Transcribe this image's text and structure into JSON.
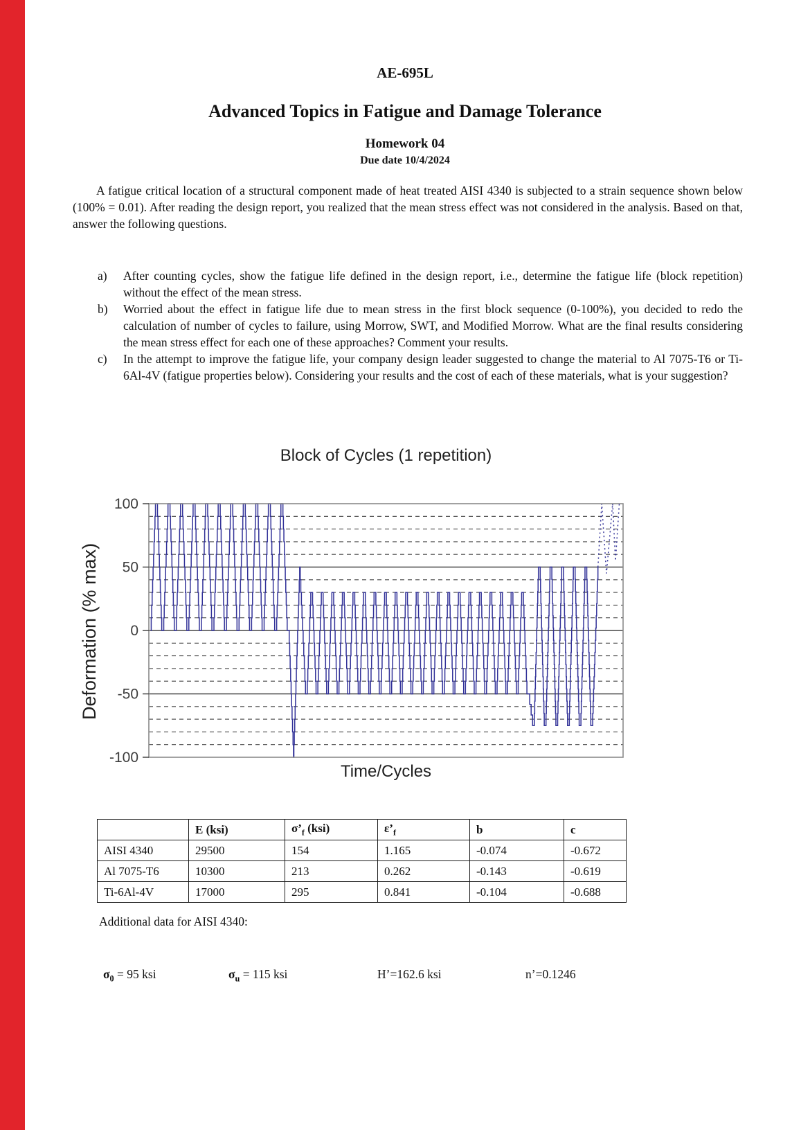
{
  "header": {
    "course_code": "AE-695L",
    "course_title": "Advanced Topics in Fatigue and Damage Tolerance",
    "homework": "Homework 04",
    "due_date": "Due date 10/4/2024"
  },
  "intro": "A fatigue critical location of a structural component made of heat treated AISI 4340 is subjected to a strain sequence shown below (100% = 0.01). After reading the design report, you realized that the mean stress effect was not considered in the analysis. Based on that, answer the following questions.",
  "questions": [
    {
      "label": "a)",
      "text": "After counting cycles, show the fatigue life defined in the design report, i.e., determine the fatigue life (block repetition) without the effect of the mean stress."
    },
    {
      "label": "b)",
      "text": "Worried about the effect in fatigue life due to mean stress in the first block sequence (0-100%), you decided to redo the calculation of number of cycles to failure, using Morrow, SWT, and Modified Morrow. What are the final results considering the mean stress effect for each one of these approaches? Comment your results."
    },
    {
      "label": "c)",
      "text": "In the attempt to improve the fatigue life, your company design leader suggested to change the material to Al 7075-T6 or Ti-6Al-4V (fatigue properties below). Considering your results and the cost of each of these materials, what is your suggestion?"
    }
  ],
  "chart_data": {
    "type": "line",
    "title": "Block of Cycles (1 repetition)",
    "xlabel": "Time/Cycles",
    "ylabel": "Deformation (% max)",
    "ylim": [
      -100,
      100
    ],
    "yticks": [
      100,
      50,
      0,
      -50,
      -100
    ],
    "grid": {
      "major_interval": 50,
      "minor_interval": 10,
      "minor_style": "dashed"
    },
    "line_color": "#333399",
    "axis_color": "#454545",
    "frame_color": "#8a8a8a",
    "segments": [
      {
        "type": "start",
        "t": 0.004,
        "v": 0
      },
      {
        "type": "block",
        "t0": 0.004,
        "t1": 0.295,
        "cycles": 11,
        "max": 100,
        "min": 0,
        "enter": "up"
      },
      {
        "type": "ramp",
        "points": [
          [
            0.305,
            -100
          ],
          [
            0.318,
            50
          ]
        ]
      },
      {
        "type": "block",
        "t0": 0.322,
        "t1": 0.8,
        "cycles": 21,
        "max": 30,
        "min": -50,
        "enter": "down"
      },
      {
        "type": "block",
        "t0": 0.8,
        "t1": 0.935,
        "cycles": 5,
        "max": 50,
        "min": -75,
        "enter": "down"
      },
      {
        "type": "ramp",
        "points": [
          [
            0.947,
            50
          ]
        ]
      },
      {
        "type": "dotted",
        "points": [
          [
            0.955,
            100
          ],
          [
            0.965,
            45
          ],
          [
            0.978,
            100
          ],
          [
            0.984,
            55
          ],
          [
            0.992,
            100
          ]
        ]
      }
    ]
  },
  "table": {
    "col_material": "",
    "col_e": "E (ksi)",
    "col_sf_sym": "σ’",
    "col_sf_sub": "f",
    "col_sf_unit": " (ksi)",
    "col_ef_sym": "ε’",
    "col_ef_sub": "f",
    "col_b": "b",
    "col_c": "c",
    "rows": [
      {
        "material": "AISI 4340",
        "e": "29500",
        "sf": "154",
        "ef": "1.165",
        "b": "-0.074",
        "c": "-0.672"
      },
      {
        "material": "Al 7075-T6",
        "e": "10300",
        "sf": "213",
        "ef": "0.262",
        "b": "-0.143",
        "c": "-0.619"
      },
      {
        "material": "Ti-6Al-4V",
        "e": "17000",
        "sf": "295",
        "ef": "0.841",
        "b": "-0.104",
        "c": "-0.688"
      }
    ]
  },
  "additional": {
    "label": "Additional data for AISI 4340:",
    "items": [
      {
        "sym": "σ",
        "sub": "0",
        "rest": " = 95 ksi"
      },
      {
        "sym": "σ",
        "sub": "u",
        "rest": " = 115 ksi"
      },
      {
        "sym": "",
        "sub": "",
        "rest": "H’=162.6 ksi"
      },
      {
        "sym": "",
        "sub": "",
        "rest": "n’=0.1246"
      }
    ]
  },
  "colors": {
    "edge_stripe": "#e2242b",
    "chart_line": "#333399"
  }
}
